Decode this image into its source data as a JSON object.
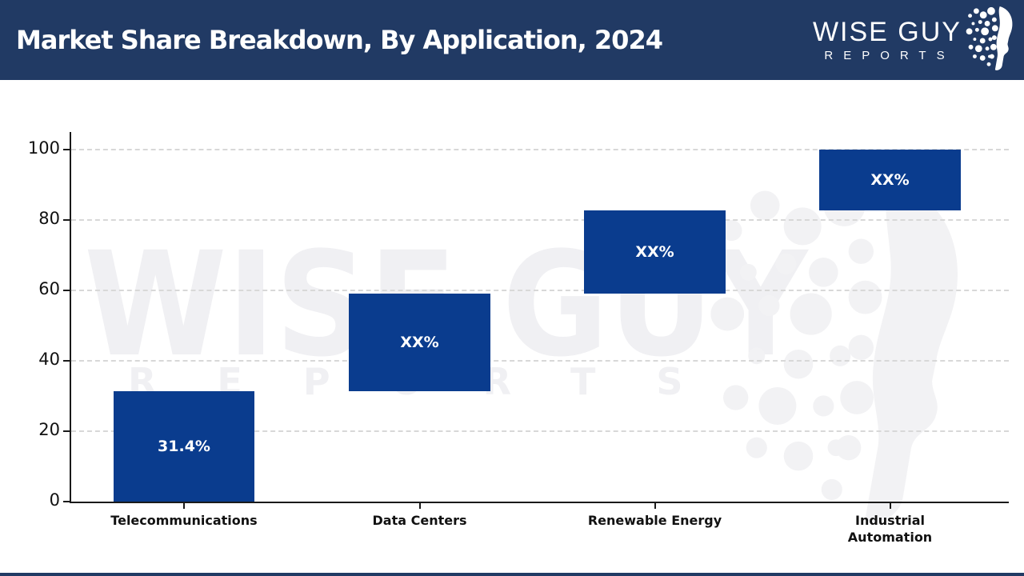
{
  "header": {
    "title": "Market Share Breakdown, By Application, 2024",
    "logo": {
      "line1": "WISE GUY",
      "line2": "REPORTS"
    }
  },
  "watermark": {
    "line1": "WISE GUY",
    "line2": "REPORTS"
  },
  "colors": {
    "header_bg": "#213a64",
    "bar_fill": "#0a3c8e",
    "grid": "#d8d8d8",
    "axis": "#1a1a1a",
    "bar_label": "#ffffff",
    "watermark": "#f0f0f3"
  },
  "chart_data": {
    "type": "bar",
    "subtype": "waterfall",
    "title": "Market Share Breakdown, By Application, 2024",
    "categories": [
      "Telecommunications",
      "Data Centers",
      "Renewable Energy",
      "Industrial\nAutomation"
    ],
    "segments": [
      {
        "category": "Telecommunications",
        "start": 0,
        "end": 31.4,
        "label": "31.4%"
      },
      {
        "category": "Data Centers",
        "start": 31.4,
        "end": 59.0,
        "label": "XX%"
      },
      {
        "category": "Renewable Energy",
        "start": 59.0,
        "end": 82.7,
        "label": "XX%"
      },
      {
        "category": "Industrial\nAutomation",
        "start": 82.7,
        "end": 100,
        "label": "XX%"
      }
    ],
    "xlabel": "",
    "ylabel": "",
    "ylim": [
      0,
      100
    ],
    "yticks": [
      0,
      20,
      40,
      60,
      80,
      100
    ],
    "grid": "horizontal-dashed",
    "legend": "none"
  }
}
